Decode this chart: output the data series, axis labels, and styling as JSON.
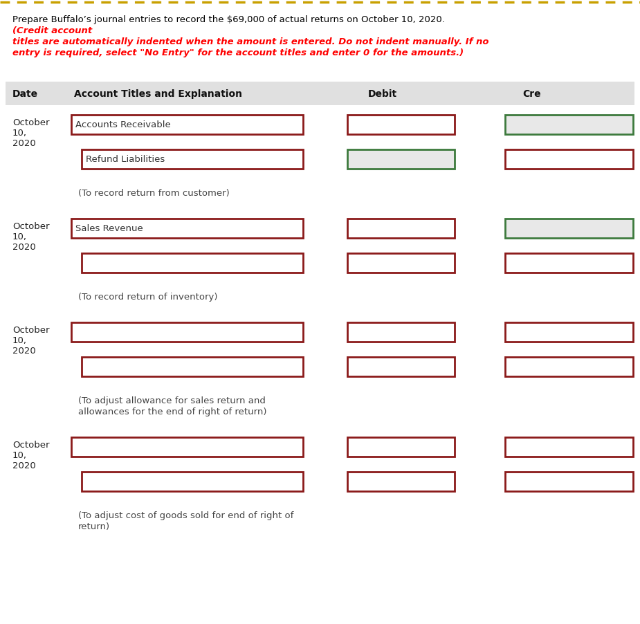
{
  "title_black": "Prepare Buffalo’s journal entries to record the $69,000 of actual returns on October 10, 2020. ",
  "title_red": "(Credit account\ntitles are automatically indented when the amount is entered. Do not indent manually. If no\nentry is required, select \"No Entry\" for the account titles and enter 0 for the amounts.)",
  "header_bg": "#e0e0e0",
  "border_top_color": "#c8a000",
  "dark_red": "#8b1a1a",
  "green_border": "#3d7a3d",
  "green_fill": "#e8e8e8",
  "rows": [
    {
      "date": [
        "October",
        "10,",
        "2020"
      ],
      "entries": [
        {
          "label": "Accounts Receivable",
          "indent": false,
          "debit_green": false,
          "credit_green": true
        },
        {
          "label": "Refund Liabilities",
          "indent": true,
          "debit_green": true,
          "credit_green": false
        }
      ],
      "note": "(To record return from customer)"
    },
    {
      "date": [
        "October",
        "10,",
        "2020"
      ],
      "entries": [
        {
          "label": "Sales Revenue",
          "indent": false,
          "debit_green": false,
          "credit_green": true
        },
        {
          "label": "",
          "indent": true,
          "debit_green": false,
          "credit_green": false
        }
      ],
      "note": "(To record return of inventory)"
    },
    {
      "date": [
        "October",
        "10,",
        "2020"
      ],
      "entries": [
        {
          "label": "",
          "indent": false,
          "debit_green": false,
          "credit_green": false
        },
        {
          "label": "",
          "indent": true,
          "debit_green": false,
          "credit_green": false
        }
      ],
      "note": "(To adjust allowance for sales return and\nallowances for the end of right of return)"
    },
    {
      "date": [
        "October",
        "10,",
        "2020"
      ],
      "entries": [
        {
          "label": "",
          "indent": false,
          "debit_green": false,
          "credit_green": false
        },
        {
          "label": "",
          "indent": true,
          "debit_green": false,
          "credit_green": false
        }
      ],
      "note": "(To adjust cost of goods sold for end of right of\nreturn)"
    }
  ]
}
